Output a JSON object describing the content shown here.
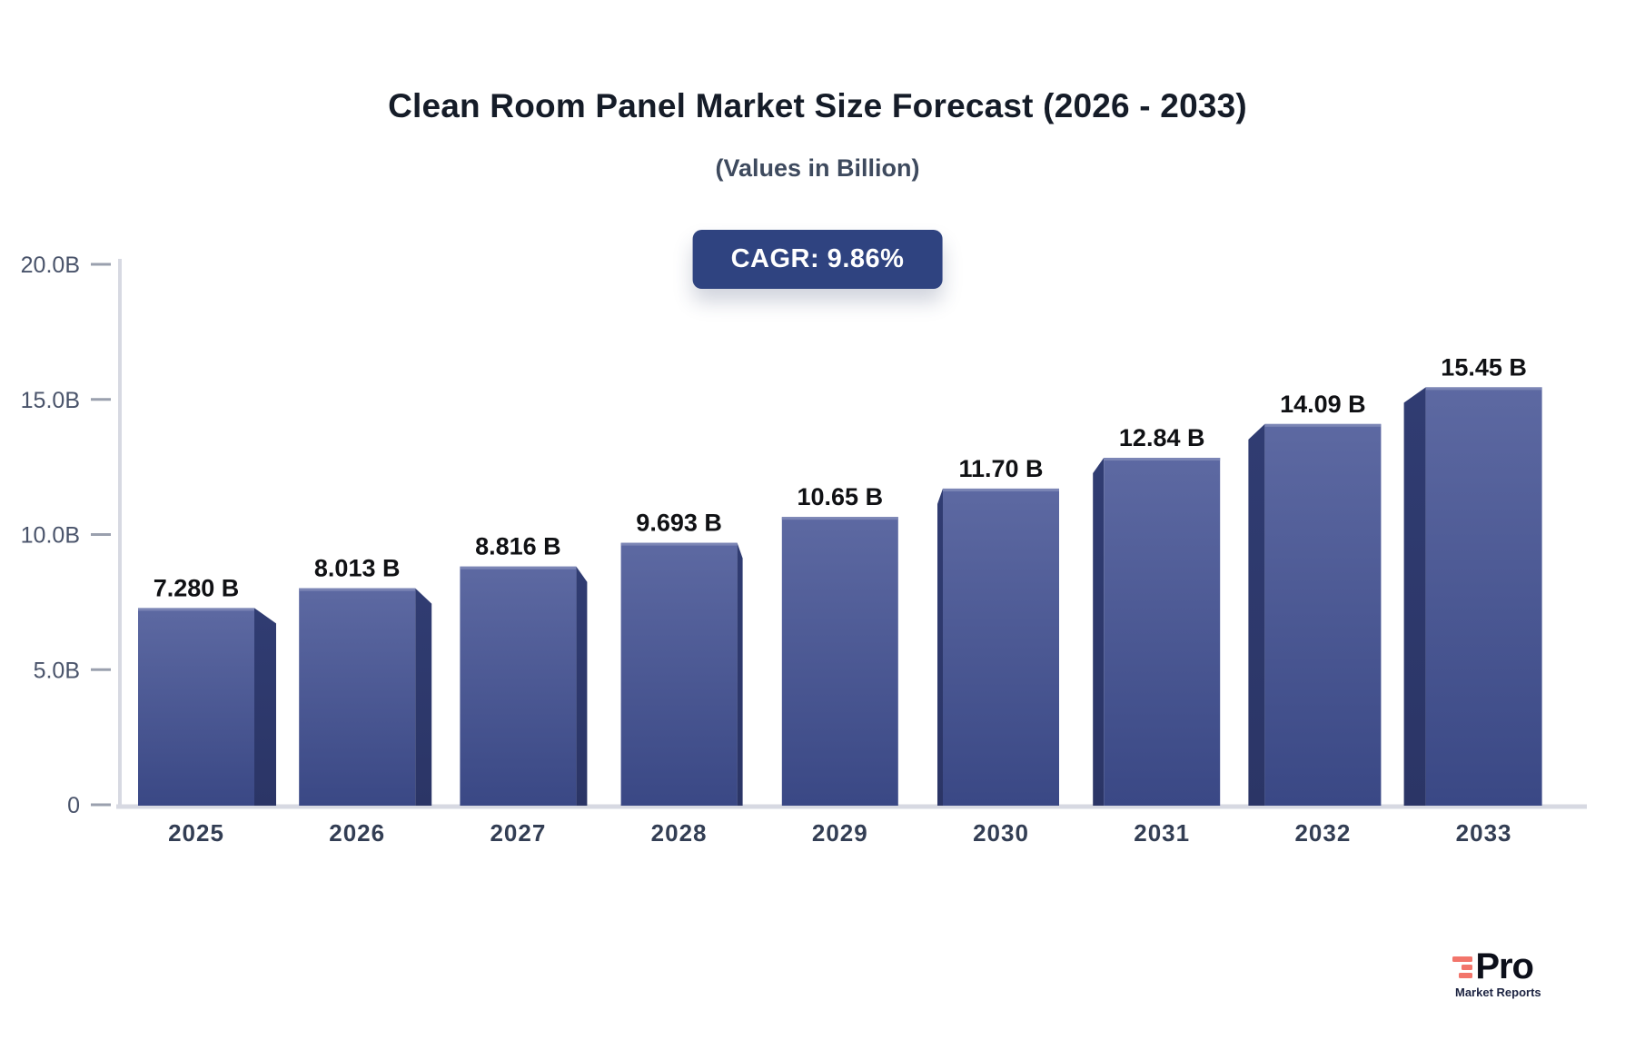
{
  "header": {
    "title": "Clean Room Panel Market Size Forecast (2026 - 2033)",
    "subtitle": "(Values in Billion)",
    "cagr_label": "CAGR: 9.86%"
  },
  "logo": {
    "name": "Pro",
    "tagline": "Market Reports"
  },
  "chart_data": {
    "type": "bar",
    "title": "Clean Room Panel Market Size Forecast (2026 - 2033)",
    "subtitle": "(Values in Billion)",
    "annotation": "CAGR: 9.86%",
    "categories": [
      "2025",
      "2026",
      "2027",
      "2028",
      "2029",
      "2030",
      "2031",
      "2032",
      "2033"
    ],
    "values": [
      7.28,
      8.013,
      8.816,
      9.693,
      10.65,
      11.7,
      12.84,
      14.09,
      15.45
    ],
    "value_labels": [
      "7.280 B",
      "8.013 B",
      "8.816 B",
      "9.693 B",
      "10.65 B",
      "11.70 B",
      "12.84 B",
      "14.09 B",
      "15.45 B"
    ],
    "unit": "Billion",
    "xlabel": "",
    "ylabel": "",
    "ylim": [
      0,
      20
    ],
    "yticks": [
      {
        "value": 0,
        "label": "0"
      },
      {
        "value": 5,
        "label": "5.0B"
      },
      {
        "value": 10,
        "label": "10.0B"
      },
      {
        "value": 15,
        "label": "15.0B"
      },
      {
        "value": 20,
        "label": "20.0B"
      }
    ],
    "grid": false,
    "legend": false,
    "style": "3d-perspective-bars",
    "colors": {
      "bar_face_top": "#5d69a2",
      "bar_face_bottom": "#3a4885",
      "bar_face_highlight": "#7e88b7",
      "bar_side": "#2b3566",
      "axis_line": "#d7d9e2",
      "tick_mark": "#9aa0ae",
      "tick_text": "#49536a",
      "category_text": "#333e54",
      "value_text": "#101114",
      "badge_bg": "#2f4380",
      "badge_text": "#ffffff",
      "logo_red": "#f2756b"
    }
  }
}
